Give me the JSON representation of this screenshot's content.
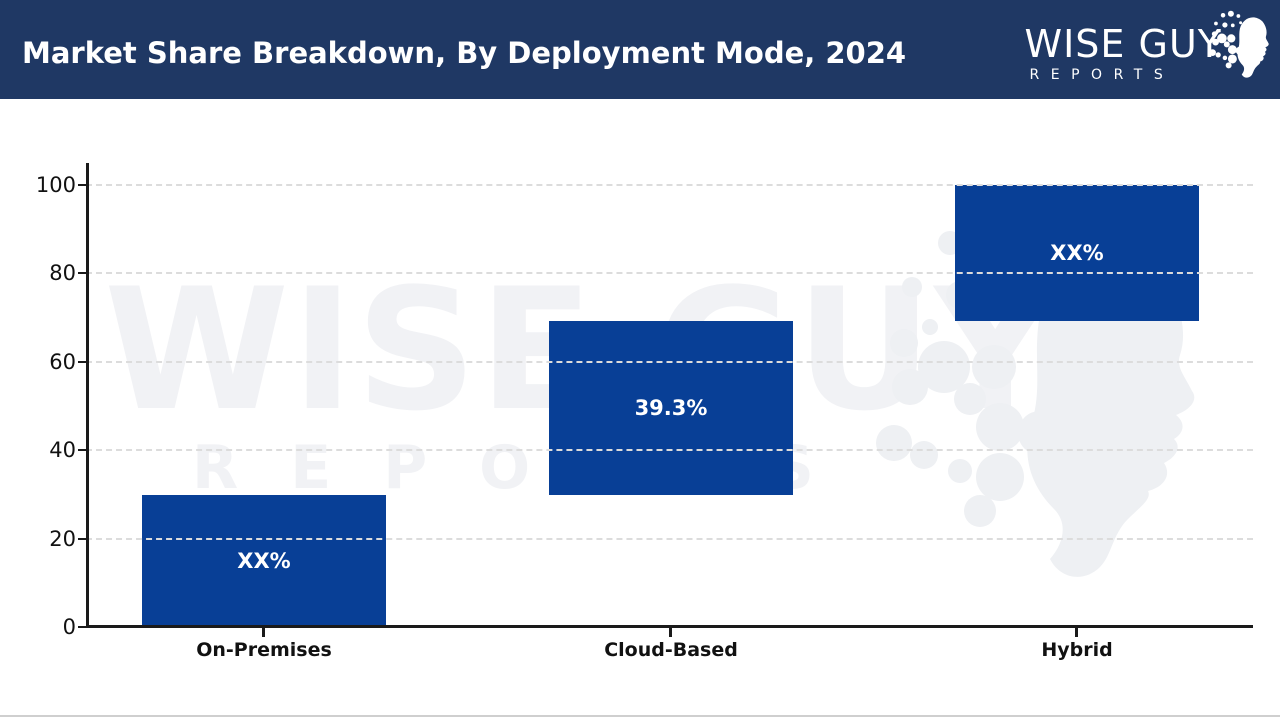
{
  "header": {
    "title": "Market Share Breakdown, By Deployment Mode, 2024",
    "background_color": "#1f3864",
    "logo": {
      "line1": "WISE GUY",
      "line2": "REPORTS"
    }
  },
  "watermark": {
    "line1": "WISE GUY",
    "line2": "REPORTS"
  },
  "chart_data": {
    "type": "bar",
    "subtype": "waterfall",
    "title": "Market Share Breakdown, By Deployment Mode, 2024",
    "categories": [
      "On-Premises",
      "Cloud-Based",
      "Hybrid"
    ],
    "segments": [
      {
        "category": "On-Premises",
        "start": 0,
        "end": 29.9,
        "value": 29.9,
        "value_label": "XX%"
      },
      {
        "category": "Cloud-Based",
        "start": 29.9,
        "end": 69.2,
        "value": 39.3,
        "value_label": "39.3%"
      },
      {
        "category": "Hybrid",
        "start": 69.2,
        "end": 100,
        "value": 30.8,
        "value_label": "XX%"
      }
    ],
    "xlabel": "",
    "ylabel": "",
    "ylim": [
      0,
      105
    ],
    "yticks": [
      0,
      20,
      40,
      60,
      80,
      100
    ],
    "grid": "horizontal-dashed",
    "grid_color": "#dcdcdc",
    "legend": "none",
    "bar_color": "#083f96",
    "bar_label_color": "#ffffff",
    "axis_color": "#1a1a1a"
  }
}
